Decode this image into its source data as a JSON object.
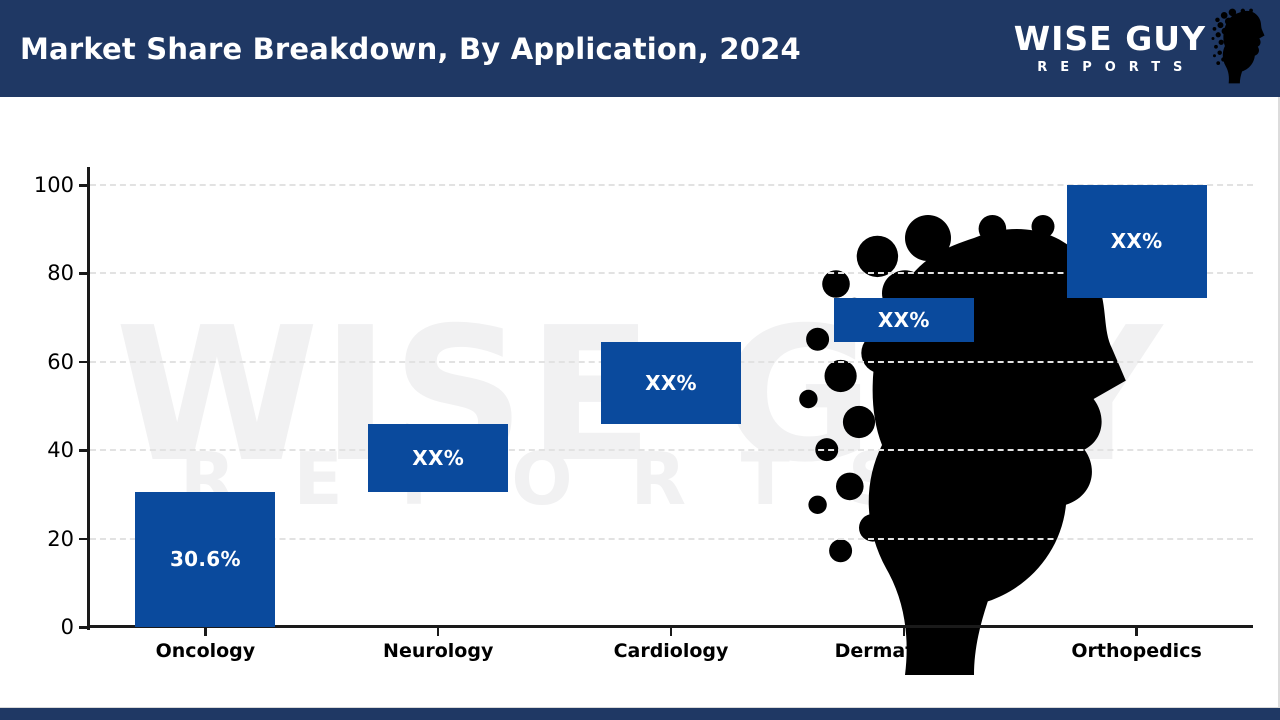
{
  "header": {
    "title": "Market Share Breakdown, By Application, 2024",
    "logo": {
      "line1": "WISE GUY",
      "line2": "REPORTS"
    }
  },
  "watermark": {
    "line1": "WISE GUY",
    "line2": "REPORTS"
  },
  "colors": {
    "header_bg": "#1f3864",
    "footer_bg": "#1f3864",
    "bar": "#0a4a9d",
    "bar_label": "#ffffff",
    "axis": "#1a1a1a",
    "grid": "#e2e2e2",
    "watermark": "#f1f1f2"
  },
  "chart_data": {
    "type": "bar",
    "subtype": "floating-waterfall",
    "title": "Market Share Breakdown, By Application, 2024",
    "categories": [
      "Oncology",
      "Neurology",
      "Cardiology",
      "Dermatology",
      "Orthopedics"
    ],
    "bars": [
      {
        "category": "Oncology",
        "start": 0,
        "end": 30.6,
        "label": "30.6%"
      },
      {
        "category": "Neurology",
        "start": 30.6,
        "end": 46.0,
        "label": "XX%"
      },
      {
        "category": "Cardiology",
        "start": 46.0,
        "end": 64.5,
        "label": "XX%"
      },
      {
        "category": "Dermatology",
        "start": 64.5,
        "end": 74.5,
        "label": "XX%"
      },
      {
        "category": "Orthopedics",
        "start": 74.5,
        "end": 100,
        "label": "XX%"
      }
    ],
    "yticks": [
      0,
      20,
      40,
      60,
      80,
      100
    ],
    "ylim": [
      0,
      104
    ],
    "grid": "horizontal-dashed",
    "legend": "none",
    "xlabel": "",
    "ylabel": ""
  }
}
